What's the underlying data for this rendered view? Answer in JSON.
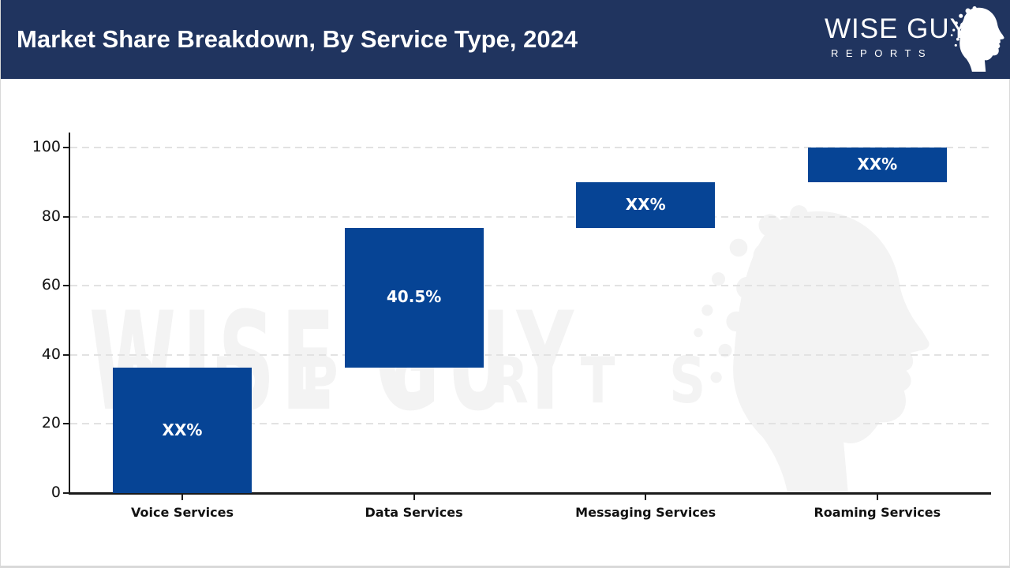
{
  "header": {
    "title": "Market Share Breakdown, By Service Type, 2024",
    "logo": {
      "brand_line1": "WISE GUY",
      "brand_line2": "REPORTS",
      "face_icon": "head-profile-dots-icon"
    }
  },
  "watermark": {
    "line1": "WISE GUY",
    "line2": "REPORTS",
    "face_icon": "head-profile-dots-icon"
  },
  "colors": {
    "header_bg": "#20345f",
    "bar": "#064495",
    "bar_label": "#ffffff",
    "axis": "#1a1a1a",
    "grid": "#e2e2e2",
    "watermark": "#f3f3f3",
    "tick_text": "#111111"
  },
  "chart_data": {
    "type": "bar",
    "subtype": "waterfall",
    "title": "Market Share Breakdown, By Service Type, 2024",
    "categories": [
      "Voice Services",
      "Data Services",
      "Messaging Services",
      "Roaming Services"
    ],
    "segments": [
      {
        "category": "Voice Services",
        "start": 0,
        "end": 36.3,
        "value": 36.3,
        "label": "XX%"
      },
      {
        "category": "Data Services",
        "start": 36.3,
        "end": 76.8,
        "value": 40.5,
        "label": "40.5%"
      },
      {
        "category": "Messaging Services",
        "start": 76.8,
        "end": 90.0,
        "value": 13.2,
        "label": "XX%"
      },
      {
        "category": "Roaming Services",
        "start": 90.0,
        "end": 100.0,
        "value": 10.0,
        "label": "XX%"
      }
    ],
    "xlabel": "",
    "ylabel": "",
    "y_ticks": [
      0,
      20,
      40,
      60,
      80,
      100
    ],
    "ylim": [
      0,
      104
    ],
    "grid": "horizontal-dashed",
    "legend": "none"
  }
}
